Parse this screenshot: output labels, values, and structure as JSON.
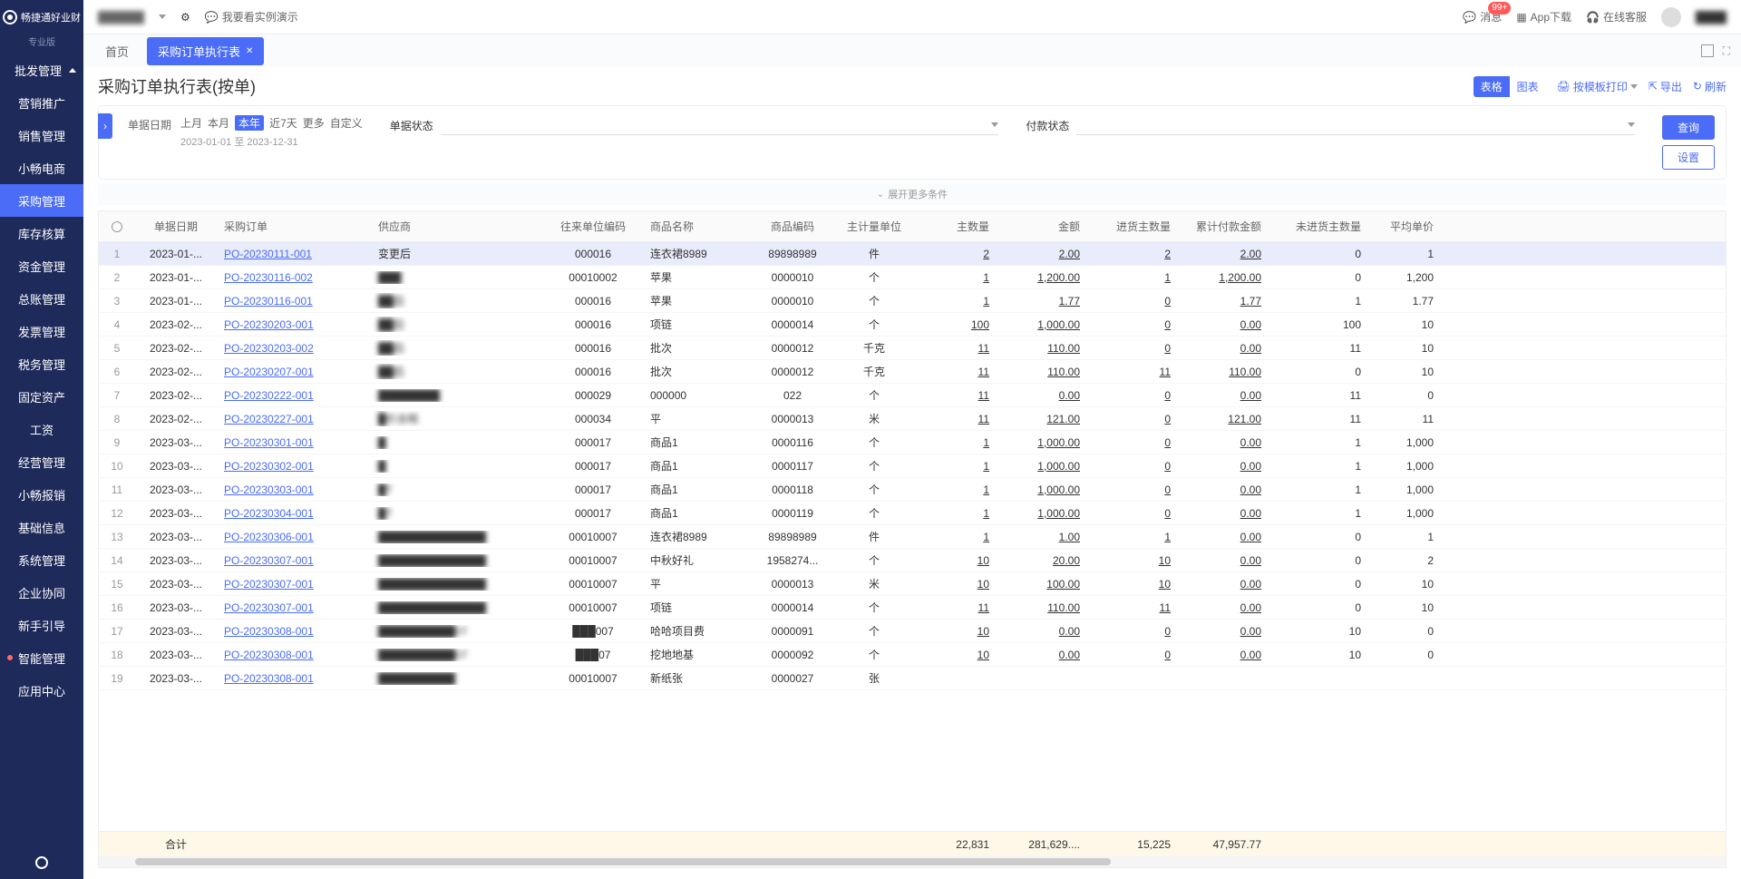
{
  "brand": "畅捷通好业财",
  "edition": "专业版",
  "sidebar": {
    "parent": "批发管理",
    "items": [
      "营销推广",
      "销售管理",
      "小畅电商",
      "采购管理",
      "库存核算",
      "资金管理",
      "总账管理",
      "发票管理",
      "税务管理",
      "固定资产",
      "工资",
      "经营管理",
      "小畅报销",
      "基础信息",
      "系统管理",
      "企业协同",
      "新手引导",
      "智能管理",
      "应用中心"
    ],
    "activeIndex": 3,
    "dotIndex": 17
  },
  "topbar": {
    "company": "██████",
    "demo": "我要看实例演示",
    "msg": "消息",
    "badge": "99+",
    "app": "App下载",
    "cs": "在线客服",
    "user": "████"
  },
  "tabs": {
    "home": "首页",
    "active": "采购订单执行表"
  },
  "page": {
    "title": "采购订单执行表(按单)",
    "view": {
      "table": "表格",
      "chart": "图表"
    },
    "actions": {
      "print": "按模板打印",
      "export": "导出",
      "refresh": "刷新"
    }
  },
  "filter": {
    "dateLabel": "单据日期",
    "quick": [
      "上月",
      "本月",
      "本年",
      "近7天",
      "更多",
      "自定义"
    ],
    "quickActive": 2,
    "range": "2023-01-01 至 2023-12-31",
    "status": "单据状态",
    "pay": "付款状态",
    "search": "查询",
    "settings": "设置",
    "expand": "展开更多条件"
  },
  "grid": {
    "cols": [
      "",
      "单据日期",
      "采购订单",
      "供应商",
      "往来单位编码",
      "商品名称",
      "商品编码",
      "主计量单位",
      "主数量",
      "金额",
      "进货主数量",
      "累计付款金额",
      "未进货主数量",
      "平均单价"
    ],
    "rows": [
      {
        "n": 1,
        "d": "2023-01-...",
        "po": "PO-20230111-001",
        "sup": "变更后",
        "supBlur": false,
        "code": "000016",
        "prod": "连衣裙8989",
        "pcode": "89898989",
        "unit": "件",
        "qty": "2",
        "amt": "2.00",
        "rqty": "2",
        "paid": "2.00",
        "uqty": "0",
        "avg": "1"
      },
      {
        "n": 2,
        "d": "2023-01-...",
        "po": "PO-20230116-002",
        "sup": "███",
        "supBlur": true,
        "code": "00010002",
        "prod": "苹果",
        "pcode": "0000010",
        "unit": "个",
        "qty": "1",
        "amt": "1,200.00",
        "rqty": "1",
        "paid": "1,200.00",
        "uqty": "0",
        "avg": "1,200"
      },
      {
        "n": 3,
        "d": "2023-01-...",
        "po": "PO-20230116-001",
        "sup": "██后",
        "supBlur": true,
        "code": "000016",
        "prod": "苹果",
        "pcode": "0000010",
        "unit": "个",
        "qty": "1",
        "amt": "1.77",
        "rqty": "0",
        "paid": "1.77",
        "uqty": "1",
        "avg": "1.77"
      },
      {
        "n": 4,
        "d": "2023-02-...",
        "po": "PO-20230203-001",
        "sup": "██后",
        "supBlur": true,
        "code": "000016",
        "prod": "项链",
        "pcode": "0000014",
        "unit": "个",
        "qty": "100",
        "amt": "1,000.00",
        "rqty": "0",
        "paid": "0.00",
        "uqty": "100",
        "avg": "10"
      },
      {
        "n": 5,
        "d": "2023-02-...",
        "po": "PO-20230203-002",
        "sup": "██后",
        "supBlur": true,
        "code": "000016",
        "prod": "批次",
        "pcode": "0000012",
        "unit": "千克",
        "qty": "11",
        "amt": "110.00",
        "rqty": "0",
        "paid": "0.00",
        "uqty": "11",
        "avg": "10"
      },
      {
        "n": 6,
        "d": "2023-02-...",
        "po": "PO-20230207-001",
        "sup": "██后",
        "supBlur": true,
        "code": "000016",
        "prod": "批次",
        "pcode": "0000012",
        "unit": "千克",
        "qty": "11",
        "amt": "110.00",
        "rqty": "11",
        "paid": "110.00",
        "uqty": "0",
        "avg": "10"
      },
      {
        "n": 7,
        "d": "2023-02-...",
        "po": "PO-20230222-001",
        "sup": "████████",
        "supBlur": true,
        "code": "000029",
        "prod": "000000",
        "pcode": "022",
        "unit": "个",
        "qty": "11",
        "amt": "0.00",
        "rqty": "0",
        "paid": "0.00",
        "uqty": "11",
        "avg": "0"
      },
      {
        "n": 8,
        "d": "2023-02-...",
        "po": "PO-20230227-001",
        "sup": "█价含税",
        "supBlur": true,
        "code": "000034",
        "prod": "平",
        "pcode": "0000013",
        "unit": "米",
        "qty": "11",
        "amt": "121.00",
        "rqty": "0",
        "paid": "121.00",
        "uqty": "11",
        "avg": "11"
      },
      {
        "n": 9,
        "d": "2023-03-...",
        "po": "PO-20230301-001",
        "sup": "█",
        "supBlur": true,
        "code": "000017",
        "prod": "商品1",
        "pcode": "0000116",
        "unit": "个",
        "qty": "1",
        "amt": "1,000.00",
        "rqty": "0",
        "paid": "0.00",
        "uqty": "1",
        "avg": "1,000"
      },
      {
        "n": 10,
        "d": "2023-03-...",
        "po": "PO-20230302-001",
        "sup": "█",
        "supBlur": true,
        "code": "000017",
        "prod": "商品1",
        "pcode": "0000117",
        "unit": "个",
        "qty": "1",
        "amt": "1,000.00",
        "rqty": "0",
        "paid": "0.00",
        "uqty": "1",
        "avg": "1,000"
      },
      {
        "n": 11,
        "d": "2023-03-...",
        "po": "PO-20230303-001",
        "sup": "█T",
        "supBlur": true,
        "code": "000017",
        "prod": "商品1",
        "pcode": "0000118",
        "unit": "个",
        "qty": "1",
        "amt": "1,000.00",
        "rqty": "0",
        "paid": "0.00",
        "uqty": "1",
        "avg": "1,000"
      },
      {
        "n": 12,
        "d": "2023-03-...",
        "po": "PO-20230304-001",
        "sup": "█T",
        "supBlur": true,
        "code": "000017",
        "prod": "商品1",
        "pcode": "0000119",
        "unit": "个",
        "qty": "1",
        "amt": "1,000.00",
        "rqty": "0",
        "paid": "0.00",
        "uqty": "1",
        "avg": "1,000"
      },
      {
        "n": 13,
        "d": "2023-03-...",
        "po": "PO-20230306-001",
        "sup": "██████████████",
        "supBlur": true,
        "code": "00010007",
        "prod": "连衣裙8989",
        "pcode": "89898989",
        "unit": "件",
        "qty": "1",
        "amt": "1.00",
        "rqty": "1",
        "paid": "0.00",
        "uqty": "0",
        "avg": "1"
      },
      {
        "n": 14,
        "d": "2023-03-...",
        "po": "PO-20230307-001",
        "sup": "██████████████",
        "supBlur": true,
        "code": "00010007",
        "prod": "中秋好礼",
        "pcode": "1958274...",
        "unit": "个",
        "qty": "10",
        "amt": "20.00",
        "rqty": "10",
        "paid": "0.00",
        "uqty": "0",
        "avg": "2"
      },
      {
        "n": 15,
        "d": "2023-03-...",
        "po": "PO-20230307-001",
        "sup": "██████████████",
        "supBlur": true,
        "code": "00010007",
        "prod": "平",
        "pcode": "0000013",
        "unit": "米",
        "qty": "10",
        "amt": "100.00",
        "rqty": "10",
        "paid": "0.00",
        "uqty": "0",
        "avg": "10"
      },
      {
        "n": 16,
        "d": "2023-03-...",
        "po": "PO-20230307-001",
        "sup": "██████████████",
        "supBlur": true,
        "code": "00010007",
        "prod": "项链",
        "pcode": "0000014",
        "unit": "个",
        "qty": "11",
        "amt": "110.00",
        "rqty": "11",
        "paid": "0.00",
        "uqty": "0",
        "avg": "10"
      },
      {
        "n": 17,
        "d": "2023-03-...",
        "po": "PO-20230308-001",
        "sup": "██████████07",
        "supBlur": true,
        "code": "███007",
        "prod": "哈哈项目费",
        "pcode": "0000091",
        "unit": "个",
        "qty": "10",
        "amt": "0.00",
        "rqty": "0",
        "paid": "0.00",
        "uqty": "10",
        "avg": "0"
      },
      {
        "n": 18,
        "d": "2023-03-...",
        "po": "PO-20230308-001",
        "sup": "██████████07",
        "supBlur": true,
        "code": "███07",
        "prod": "挖地地基",
        "pcode": "0000092",
        "unit": "个",
        "qty": "10",
        "amt": "0.00",
        "rqty": "0",
        "paid": "0.00",
        "uqty": "10",
        "avg": "0"
      },
      {
        "n": 19,
        "d": "2023-03-...",
        "po": "PO-20230308-001",
        "sup": "██████████",
        "supBlur": true,
        "code": "00010007",
        "prod": "新纸张",
        "pcode": "0000027",
        "unit": "张",
        "qty": "",
        "amt": "",
        "rqty": "",
        "paid": "",
        "uqty": "",
        "avg": ""
      }
    ],
    "total": {
      "label": "合计",
      "qty": "22,831",
      "amt": "281,629....",
      "rqty": "15,225",
      "paid": "47,957.77"
    }
  }
}
